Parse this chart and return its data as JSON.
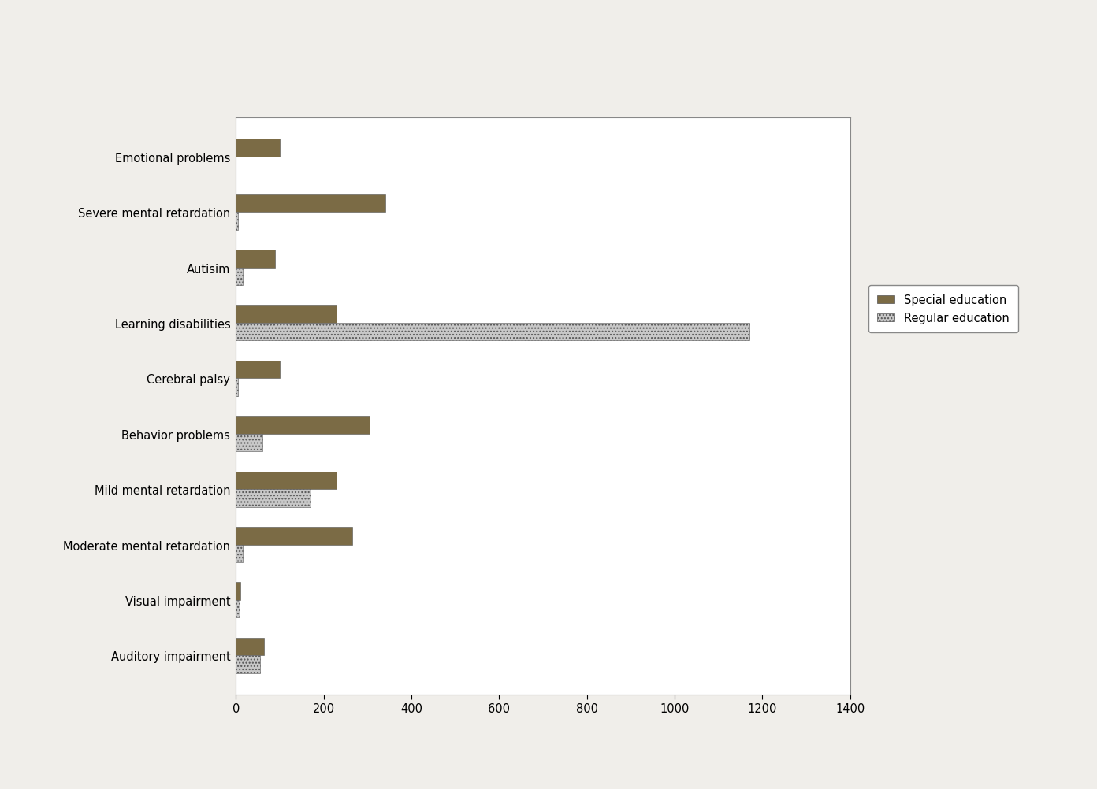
{
  "categories": [
    "Emotional problems",
    "Severe mental retardation",
    "Autisim",
    "Learning disabilities",
    "Cerebral palsy",
    "Behavior problems",
    "Mild mental retardation",
    "Moderate mental retardation",
    "Visual impairment",
    "Auditory impairment"
  ],
  "special_education": [
    100,
    340,
    90,
    230,
    100,
    305,
    230,
    265,
    10,
    65
  ],
  "regular_education": [
    0,
    5,
    15,
    1170,
    5,
    60,
    170,
    15,
    8,
    55
  ],
  "special_color": "#7b6b45",
  "regular_color": "#c8c8c8",
  "xlim": [
    0,
    1400
  ],
  "xticks": [
    0,
    200,
    400,
    600,
    800,
    1000,
    1200,
    1400
  ],
  "bar_height": 0.32,
  "background_color": "#f0eeea",
  "legend_special": "Special education",
  "legend_regular": "Regular education"
}
